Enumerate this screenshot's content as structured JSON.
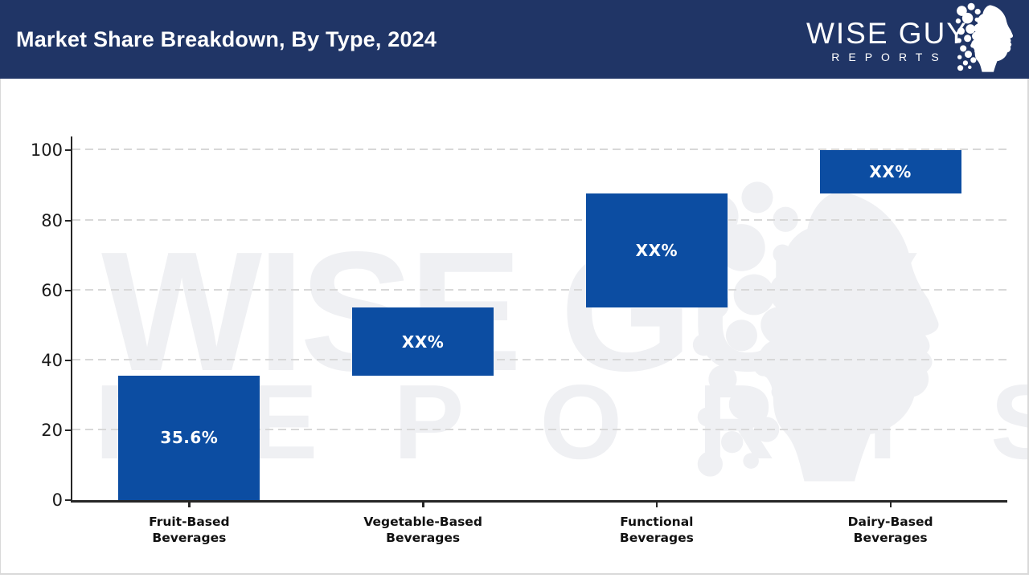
{
  "header": {
    "title": "Market Share Breakdown, By Type, 2024",
    "bg_color": "#203566",
    "logo": {
      "line1": "WISE GUY",
      "line2": "REPORTS"
    }
  },
  "watermark": {
    "line1": "WISE GUY",
    "line2": "REPORTS"
  },
  "chart_data": {
    "type": "bar",
    "subtype": "waterfall",
    "title": "Market Share Breakdown, By Type, 2024",
    "categories": [
      {
        "lines": [
          "Fruit-Based",
          "Beverages"
        ]
      },
      {
        "lines": [
          "Vegetable-Based",
          "Beverages"
        ]
      },
      {
        "lines": [
          "Functional",
          "Beverages"
        ]
      },
      {
        "lines": [
          "Dairy-Based",
          "Beverages"
        ]
      }
    ],
    "bars": [
      {
        "label": "35.6%",
        "start": 0,
        "end": 35.6
      },
      {
        "label": "XX%",
        "start": 35.6,
        "end": 55
      },
      {
        "label": "XX%",
        "start": 55,
        "end": 87.6
      },
      {
        "label": "XX%",
        "start": 87.6,
        "end": 100
      }
    ],
    "yticks": [
      0,
      20,
      40,
      60,
      80,
      100
    ],
    "ylim": [
      0,
      104
    ],
    "xlabel": "",
    "ylabel": "",
    "bar_color": "#0c4da2",
    "bar_label_color": "#ffffff",
    "grid": "horizontal-dashed",
    "legend": "none"
  }
}
